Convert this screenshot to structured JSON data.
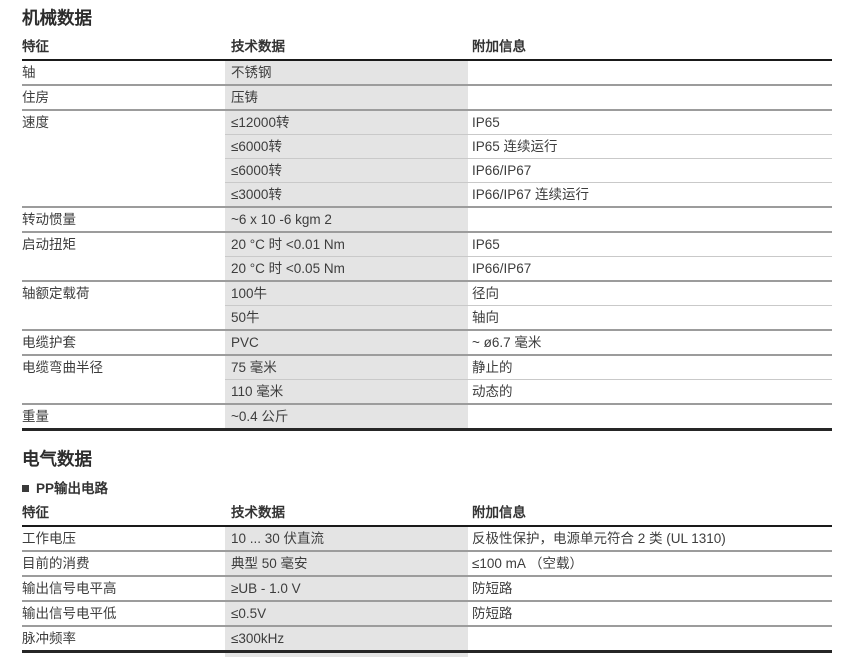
{
  "colors": {
    "cell-bg": "#e4e4e4",
    "header-rule": "#1a1a1a",
    "group-rule": "#9c9c9c",
    "row-rule": "#c9c9c9",
    "bottom-rule": "#262626",
    "text": "#3d3d3d",
    "bullet": "#3a3a3a"
  },
  "sections": [
    {
      "title": "机械数据",
      "subtitle": null,
      "columns": [
        "特征",
        "技术数据",
        "附加信息"
      ],
      "truncated_next_row": false,
      "groups": [
        {
          "feature": "轴",
          "rows": [
            {
              "tech": "不锈钢",
              "info": ""
            }
          ]
        },
        {
          "feature": "住房",
          "rows": [
            {
              "tech": "压铸",
              "info": ""
            }
          ]
        },
        {
          "feature": "速度",
          "rows": [
            {
              "tech": "≤12000转",
              "info": "IP65"
            },
            {
              "tech": "≤6000转",
              "info": "IP65 连续运行"
            },
            {
              "tech": "≤6000转",
              "info": "IP66/IP67"
            },
            {
              "tech": "≤3000转",
              "info": "IP66/IP67 连续运行"
            }
          ]
        },
        {
          "feature": "转动惯量",
          "rows": [
            {
              "tech": "~6 x 10 -6 kgm 2",
              "info": ""
            }
          ]
        },
        {
          "feature": "启动扭矩",
          "rows": [
            {
              "tech": "20 °C 时 <0.01 Nm",
              "info": "IP65"
            },
            {
              "tech": "20 °C 时 <0.05 Nm",
              "info": "IP66/IP67"
            }
          ]
        },
        {
          "feature": "轴额定载荷",
          "rows": [
            {
              "tech": "100牛",
              "info": "径向"
            },
            {
              "tech": "50牛",
              "info": "轴向"
            }
          ]
        },
        {
          "feature": "电缆护套",
          "rows": [
            {
              "tech": "PVC",
              "info": "~ ø6.7 毫米"
            }
          ]
        },
        {
          "feature": "电缆弯曲半径",
          "rows": [
            {
              "tech": "75 毫米",
              "info": "静止的"
            },
            {
              "tech": "110 毫米",
              "info": "动态的"
            }
          ]
        },
        {
          "feature": "重量",
          "rows": [
            {
              "tech": "~0.4 公斤",
              "info": ""
            }
          ]
        }
      ]
    },
    {
      "title": "电气数据",
      "subtitle": "PP输出电路",
      "columns": [
        "特征",
        "技术数据",
        "附加信息"
      ],
      "truncated_next_row": true,
      "groups": [
        {
          "feature": "工作电压",
          "rows": [
            {
              "tech": "10 ... 30 伏直流",
              "info": "反极性保护，电源单元符合 2 类 (UL 1310)"
            }
          ]
        },
        {
          "feature": "目前的消费",
          "rows": [
            {
              "tech": "典型 50 毫安",
              "info": "≤100 mA （空载）"
            }
          ]
        },
        {
          "feature": "输出信号电平高",
          "rows": [
            {
              "tech": "≥UB - 1.0 V",
              "info": "防短路"
            }
          ]
        },
        {
          "feature": "输出信号电平低",
          "rows": [
            {
              "tech": "≤0.5V",
              "info": "防短路"
            }
          ]
        },
        {
          "feature": "脉冲频率",
          "rows": [
            {
              "tech": "≤300kHz",
              "info": ""
            }
          ]
        }
      ]
    }
  ]
}
